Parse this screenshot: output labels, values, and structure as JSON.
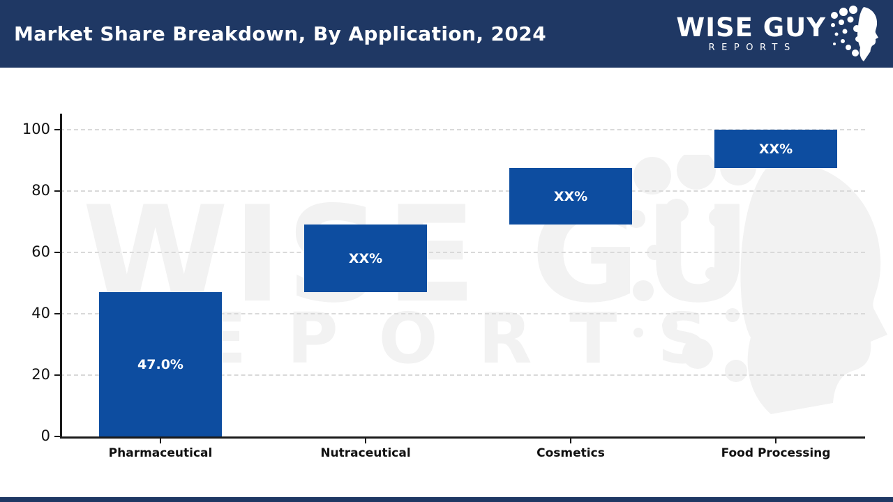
{
  "header": {
    "title": "Market Share Breakdown, By Application, 2024",
    "logo": {
      "line1": "WISE GUY",
      "line2": "REPORTS"
    }
  },
  "watermark": {
    "line1": "WISE GUY",
    "line2": "REPORTS"
  },
  "chart_data": {
    "type": "bar",
    "variant": "waterfall",
    "title": "Market Share Breakdown, By Application, 2024",
    "categories": [
      "Pharmaceutical",
      "Nutraceutical",
      "Cosmetics",
      "Food Processing"
    ],
    "segments": [
      {
        "category": "Pharmaceutical",
        "start": 0,
        "end": 47,
        "label": "47.0%"
      },
      {
        "category": "Nutraceutical",
        "start": 47,
        "end": 69,
        "label": "XX%"
      },
      {
        "category": "Cosmetics",
        "start": 69,
        "end": 87.5,
        "label": "XX%"
      },
      {
        "category": "Food Processing",
        "start": 87.5,
        "end": 100,
        "label": "XX%"
      }
    ],
    "xlabel": "",
    "ylabel": "",
    "ylim": [
      0,
      100
    ],
    "yticks": [
      0,
      20,
      40,
      60,
      80,
      100
    ],
    "grid": "horizontal-dashed",
    "legend": "none",
    "colors": {
      "bar": "#0d4da0",
      "bar_label": "#ffffff",
      "grid": "#d9d9d9",
      "axis": "#1a1a1a",
      "tick_label": "#111111",
      "header_bg": "#1f3864",
      "header_text": "#ffffff",
      "watermark": "#f2f2f2"
    }
  }
}
